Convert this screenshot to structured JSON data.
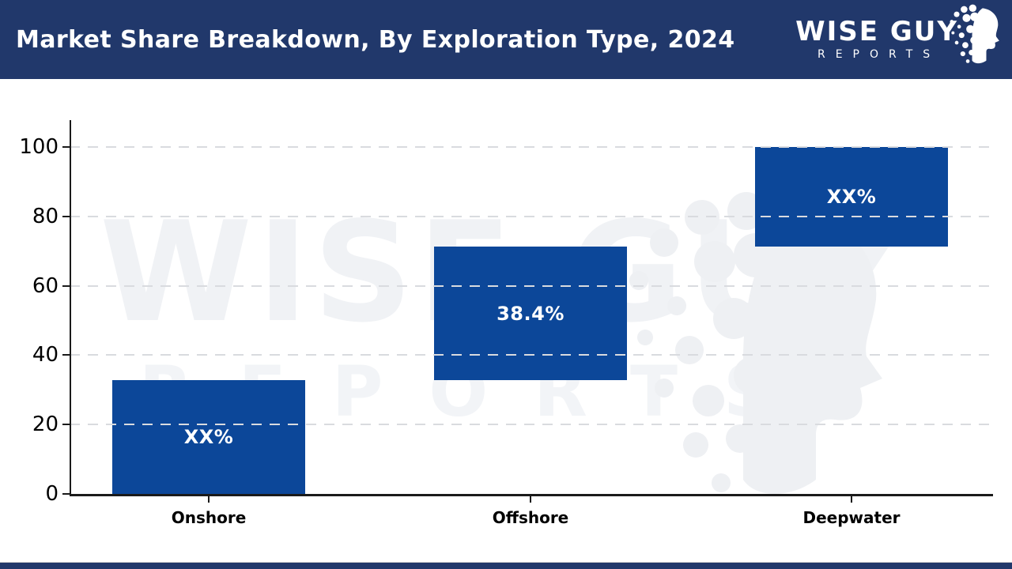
{
  "header": {
    "title": "Market Share Breakdown, By Exploration Type, 2024",
    "logo": {
      "wordmark": "WISE GUY",
      "subtitle": "REPORTS"
    }
  },
  "watermark": {
    "wordmark": "WISE GUY",
    "subtitle": "REPORTS"
  },
  "chart_data": {
    "type": "bar",
    "subtype": "floating-segment-waterfall",
    "title": "Market Share Breakdown, By Exploration Type, 2024",
    "categories": [
      "Onshore",
      "Offshore",
      "Deepwater"
    ],
    "segments": [
      {
        "category": "Onshore",
        "start": 0,
        "end": 32.8,
        "value_label": "XX%"
      },
      {
        "category": "Offshore",
        "start": 32.8,
        "end": 71.2,
        "value_label": "38.4%"
      },
      {
        "category": "Deepwater",
        "start": 71.2,
        "end": 100,
        "value_label": "XX%"
      }
    ],
    "yticks": [
      0,
      20,
      40,
      60,
      80,
      100
    ],
    "ylim": [
      0,
      107
    ],
    "xlabel": "",
    "ylabel": "",
    "grid": "horizontal-dashed",
    "legend": "none",
    "colors": {
      "bar": "#0c4799",
      "bar_label": "#ffffff",
      "grid": "#d9dbdf",
      "axis": "#1a1a1a",
      "tick_label": "#000000"
    }
  },
  "theme": {
    "header_bg": "#21386b",
    "footer_bg": "#21386b",
    "page_bg": "#ffffff",
    "watermark_color": "#f0f2f5"
  }
}
